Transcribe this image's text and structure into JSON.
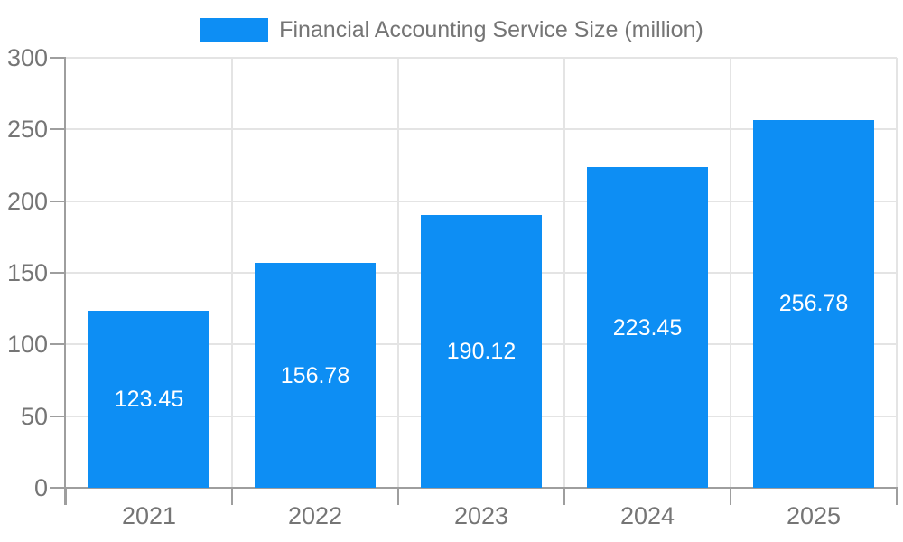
{
  "chart_data": {
    "type": "bar",
    "title": "Financial Accounting Service Size (million)",
    "categories": [
      "2021",
      "2022",
      "2023",
      "2024",
      "2025"
    ],
    "values": [
      123.45,
      156.78,
      190.12,
      223.45,
      256.78
    ],
    "value_labels": [
      "123.45",
      "156.78",
      "190.12",
      "223.45",
      "256.78"
    ],
    "xlabel": "",
    "ylabel": "",
    "ylim": [
      0,
      300
    ],
    "ytick_step": 50,
    "ytick_labels": [
      "0",
      "50",
      "100",
      "150",
      "200",
      "250",
      "300"
    ],
    "grid": true,
    "legend_position": "top-center",
    "colors": {
      "bar": "#0d8ef4",
      "bar_label": "#ffffff",
      "grid_line": "#e4e4e4",
      "axis_line": "#9e9e9e",
      "tick_text": "#757575",
      "legend_text": "#757575",
      "background": "#ffffff"
    }
  }
}
